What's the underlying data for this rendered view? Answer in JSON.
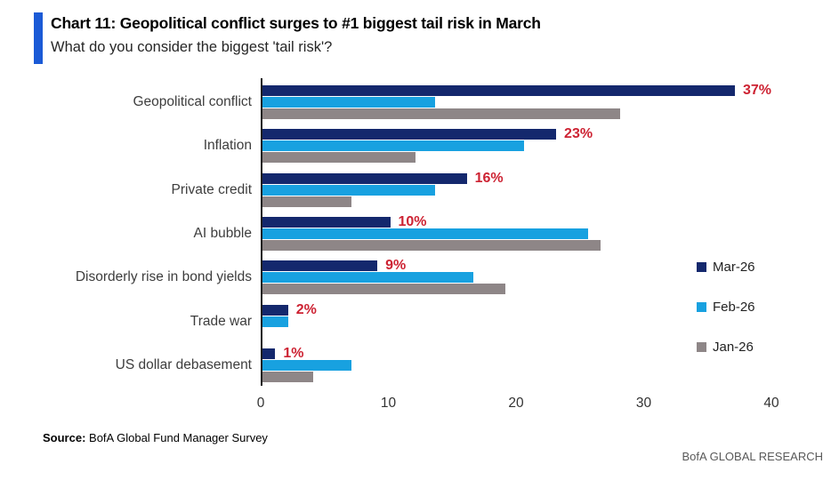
{
  "header": {
    "title": "Chart 11: Geopolitical conflict surges to #1 biggest tail risk in March",
    "subtitle": "What do you consider the biggest 'tail risk'?",
    "accent_color": "#1b5ad6"
  },
  "footer": {
    "source_label": "Source:",
    "source_text": "BofA Global Fund Manager Survey",
    "brand": "BofA GLOBAL RESEARCH"
  },
  "chart_data": {
    "type": "bar",
    "orientation": "horizontal",
    "title": "Chart 11: Geopolitical conflict surges to #1 biggest tail risk in March",
    "subtitle": "What do you consider the biggest 'tail risk'?",
    "categories": [
      "Geopolitical conflict",
      "Inflation",
      "Private credit",
      "AI bubble",
      "Disorderly rise in bond yields",
      "Trade war",
      "US dollar debasement"
    ],
    "series": [
      {
        "name": "Mar-26",
        "color": "#14286d",
        "values": [
          37,
          23,
          16,
          10,
          9,
          2,
          1
        ]
      },
      {
        "name": "Feb-26",
        "color": "#18a1e0",
        "values": [
          13.5,
          20.5,
          13.5,
          25.5,
          16.5,
          2,
          7
        ]
      },
      {
        "name": "Jan-26",
        "color": "#8e8687",
        "values": [
          28,
          12,
          7,
          26.5,
          19,
          0,
          4
        ]
      }
    ],
    "data_labels": {
      "series": "Mar-26",
      "values": [
        "37%",
        "23%",
        "16%",
        "10%",
        "9%",
        "2%",
        "1%"
      ],
      "color": "#cd2333"
    },
    "x_ticks": [
      "0",
      "10",
      "20",
      "30",
      "40"
    ],
    "xlim": [
      0,
      40
    ],
    "ylabel": "",
    "xlabel": "",
    "grid": false,
    "legend_position": "right",
    "axis_color": "#1c1c1c"
  }
}
